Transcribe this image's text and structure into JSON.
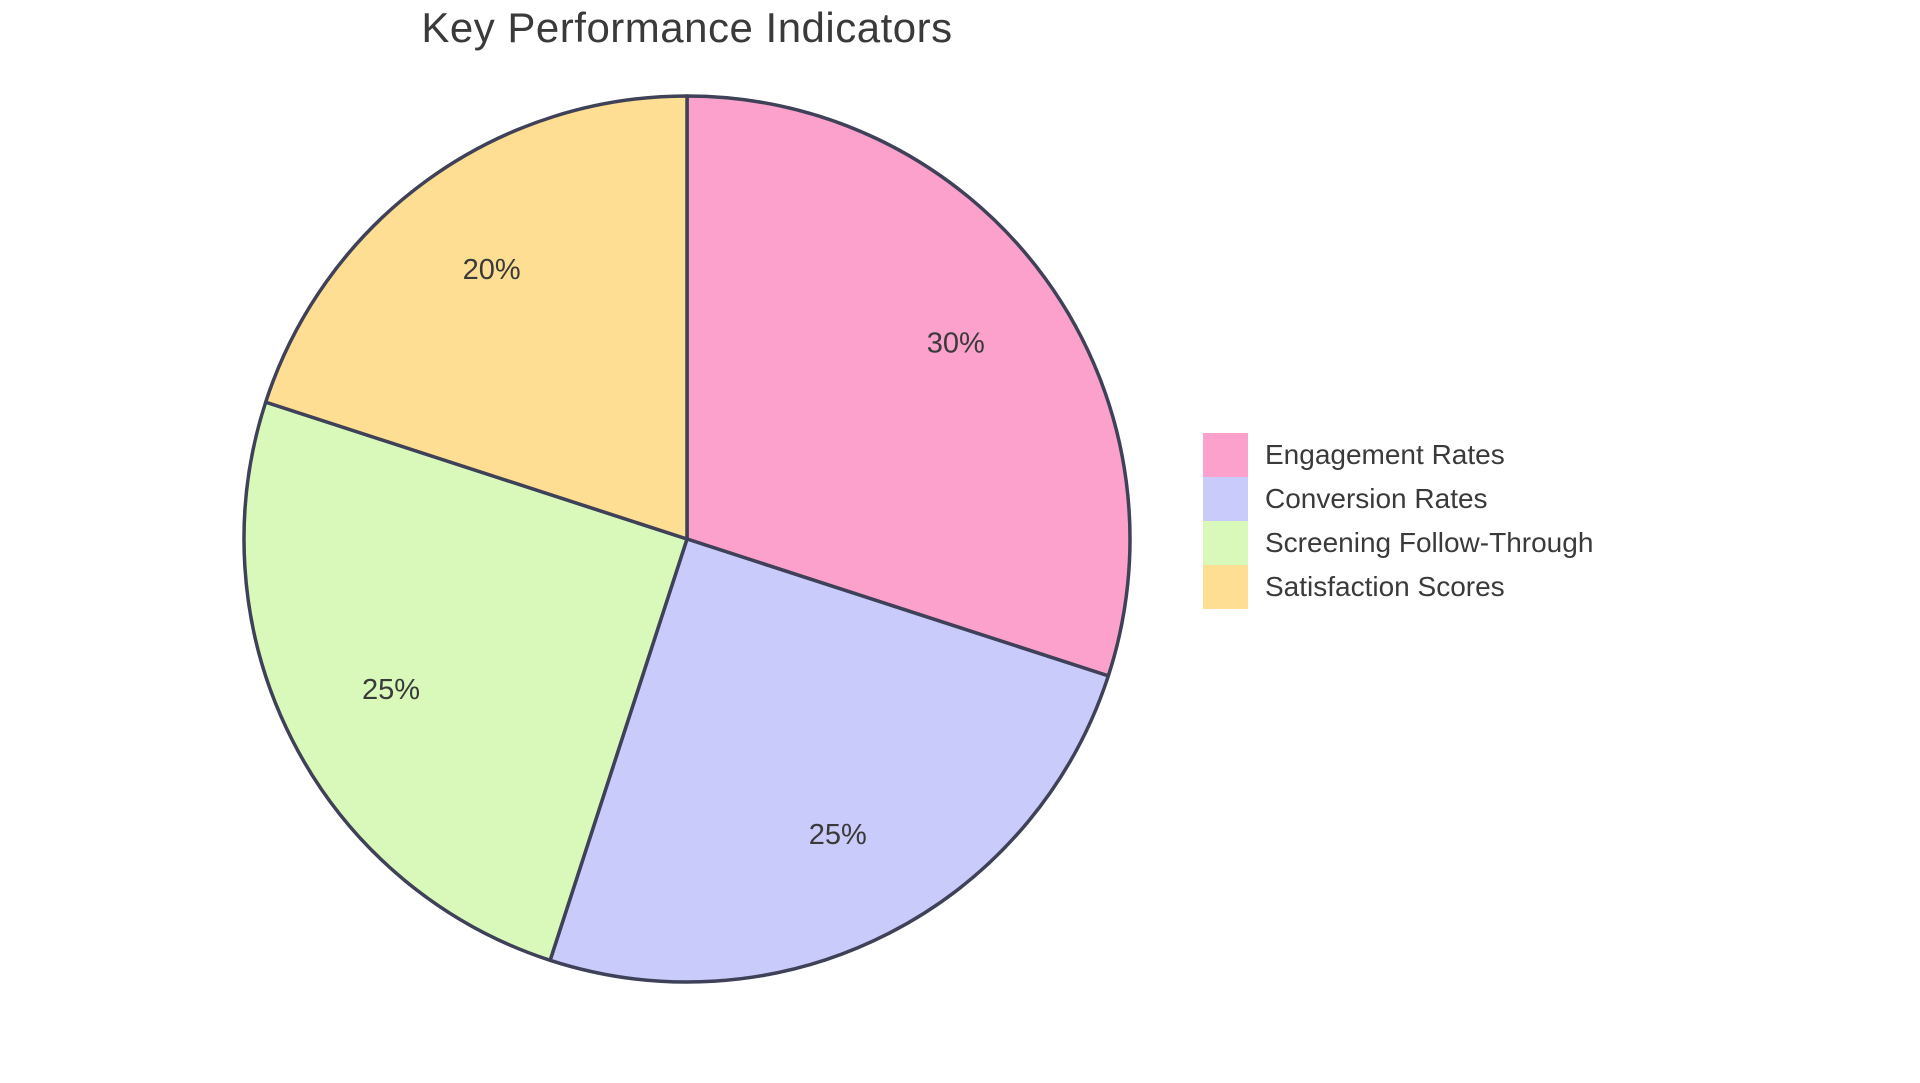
{
  "chart_data": {
    "type": "pie",
    "title": "Key Performance Indicators",
    "labels": [
      "Engagement Rates",
      "Conversion Rates",
      "Screening Follow-Through",
      "Satisfaction Scores"
    ],
    "values": [
      30,
      25,
      25,
      20
    ],
    "percent_labels": [
      "30%",
      "25%",
      "25%",
      "20%"
    ],
    "colors": [
      "#FBA1CB",
      "#C9CBFA",
      "#D8F9BA",
      "#FEDE93"
    ],
    "edge_color": "#3E4157",
    "text_color": "#3A3A3A",
    "start_angle_deg": 90,
    "direction": "clockwise",
    "label_distance": 0.75,
    "legend_position": "right",
    "background": "#FFFFFF"
  }
}
